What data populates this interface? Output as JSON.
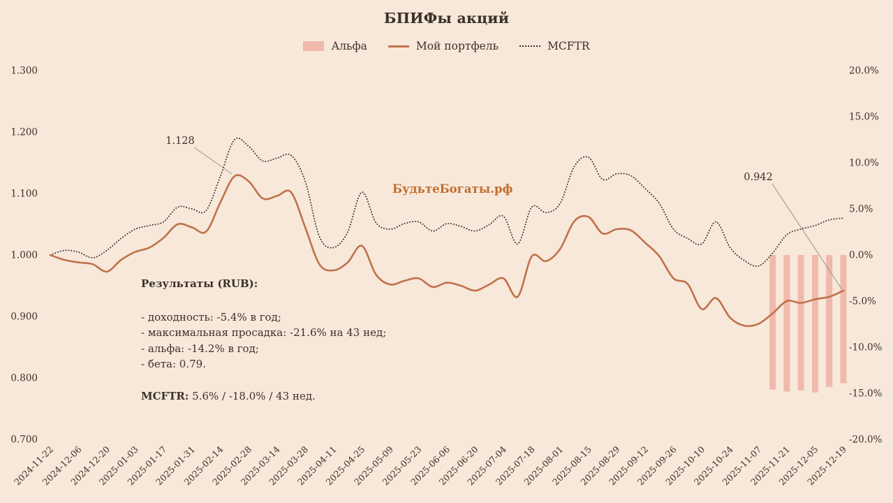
{
  "title": "БПИФы акций",
  "watermark": "БудьтеБогаты.рф",
  "legend": {
    "items": [
      {
        "label": "Альфа",
        "swatch": "bar"
      },
      {
        "label": "Мой портфель",
        "swatch": "line"
      },
      {
        "label": "MCFTR",
        "swatch": "dotted"
      }
    ]
  },
  "results": {
    "title": "Результаты (RUB):",
    "lines": [
      "- доходность: -5.4% в год;",
      "- максимальная просадка: -21.6% на 43 нед;",
      "- альфа: -14.2% в год;",
      "- бета: 0.79."
    ],
    "mcftr_label": "MCFTR:",
    "mcftr_value": " 5.6% / -18.0% / 43 нед."
  },
  "colors": {
    "background": "#f7e8da",
    "text": "#3a3127",
    "portfolio": "#c0714a",
    "alpha_bar": "#f0b9ad",
    "mcftr": "#33302b",
    "watermark": "#c26b2f",
    "annotation_line": "#9a938a"
  },
  "chart_data": {
    "type": "line",
    "legend_position": "top",
    "grid": false,
    "x_tick_every": 2,
    "x": [
      "2024-11-22",
      "2024-11-29",
      "2024-12-06",
      "2024-12-13",
      "2024-12-20",
      "2024-12-27",
      "2025-01-03",
      "2025-01-10",
      "2025-01-17",
      "2025-01-24",
      "2025-01-31",
      "2025-02-07",
      "2025-02-14",
      "2025-02-21",
      "2025-02-28",
      "2025-03-07",
      "2025-03-14",
      "2025-03-21",
      "2025-03-28",
      "2025-04-04",
      "2025-04-11",
      "2025-04-18",
      "2025-04-25",
      "2025-05-02",
      "2025-05-09",
      "2025-05-16",
      "2025-05-23",
      "2025-05-30",
      "2025-06-06",
      "2025-06-13",
      "2025-06-20",
      "2025-06-27",
      "2025-07-04",
      "2025-07-11",
      "2025-07-18",
      "2025-07-25",
      "2025-08-01",
      "2025-08-08",
      "2025-08-15",
      "2025-08-22",
      "2025-08-29",
      "2025-09-05",
      "2025-09-12",
      "2025-09-19",
      "2025-09-26",
      "2025-10-03",
      "2025-10-10",
      "2025-10-17",
      "2025-10-24",
      "2025-10-31",
      "2025-11-07",
      "2025-11-14",
      "2025-11-21",
      "2025-11-28",
      "2025-12-05",
      "2025-12-12",
      "2025-12-19"
    ],
    "left_axis": {
      "range": [
        0.7,
        1.3
      ],
      "ticks": [
        {
          "v": 1.3,
          "label": "1.300"
        },
        {
          "v": 1.2,
          "label": "1.200"
        },
        {
          "v": 1.1,
          "label": "1.100"
        },
        {
          "v": 1.0,
          "label": "1.000"
        },
        {
          "v": 0.9,
          "label": "0.900"
        },
        {
          "v": 0.8,
          "label": "0.800"
        },
        {
          "v": 0.7,
          "label": "0.700"
        }
      ]
    },
    "right_axis": {
      "range": [
        -20,
        20
      ],
      "ticks": [
        {
          "v": 20,
          "label": "20.0%"
        },
        {
          "v": 15,
          "label": "15.0%"
        },
        {
          "v": 10,
          "label": "10.0%"
        },
        {
          "v": 5,
          "label": "5.0%"
        },
        {
          "v": 0,
          "label": "0.0%"
        },
        {
          "v": -5,
          "label": "-5.0%"
        },
        {
          "v": -10,
          "label": "-10.0%"
        },
        {
          "v": -15,
          "label": "-15.0%"
        },
        {
          "v": -20,
          "label": "-20.0%"
        }
      ]
    },
    "series": [
      {
        "name": "Альфа",
        "kind": "bar",
        "axis": "right",
        "unit": "%",
        "color": "#f0b9ad",
        "start_index": 51,
        "values": [
          -14.6,
          -14.8,
          -14.7,
          -14.9,
          -14.3,
          -13.9
        ]
      },
      {
        "name": "Мой портфель",
        "kind": "line",
        "axis": "left",
        "color": "#c0714a",
        "values": [
          1.0,
          0.992,
          0.988,
          0.985,
          0.973,
          0.992,
          1.005,
          1.012,
          1.028,
          1.05,
          1.045,
          1.038,
          1.085,
          1.128,
          1.12,
          1.092,
          1.096,
          1.102,
          1.045,
          0.985,
          0.975,
          0.988,
          1.015,
          0.968,
          0.952,
          0.958,
          0.962,
          0.948,
          0.955,
          0.95,
          0.942,
          0.952,
          0.962,
          0.932,
          0.998,
          0.99,
          1.01,
          1.055,
          1.062,
          1.035,
          1.042,
          1.04,
          1.02,
          0.998,
          0.962,
          0.953,
          0.912,
          0.93,
          0.898,
          0.885,
          0.888,
          0.905,
          0.925,
          0.922,
          0.928,
          0.932,
          0.942
        ]
      },
      {
        "name": "MCFTR",
        "kind": "dotted",
        "axis": "right",
        "unit": "%",
        "color": "#33302b",
        "values": [
          0.0,
          0.5,
          0.3,
          -0.3,
          0.5,
          1.8,
          2.8,
          3.2,
          3.6,
          5.2,
          5.0,
          4.8,
          8.5,
          12.5,
          11.8,
          10.2,
          10.5,
          10.8,
          8.0,
          2.0,
          0.8,
          2.5,
          6.8,
          3.5,
          2.8,
          3.4,
          3.6,
          2.6,
          3.4,
          3.1,
          2.6,
          3.3,
          4.2,
          1.2,
          5.2,
          4.6,
          5.6,
          9.6,
          10.6,
          8.2,
          8.8,
          8.6,
          7.2,
          5.6,
          2.8,
          1.8,
          1.2,
          3.6,
          0.8,
          -0.6,
          -1.2,
          0.2,
          2.2,
          2.8,
          3.2,
          3.8,
          4.0
        ]
      }
    ],
    "annotations": [
      {
        "text": "1.128",
        "index": 13,
        "value": 1.128,
        "axis": "left"
      },
      {
        "text": "0.942",
        "index": 56,
        "value": 0.942,
        "axis": "left"
      }
    ]
  }
}
